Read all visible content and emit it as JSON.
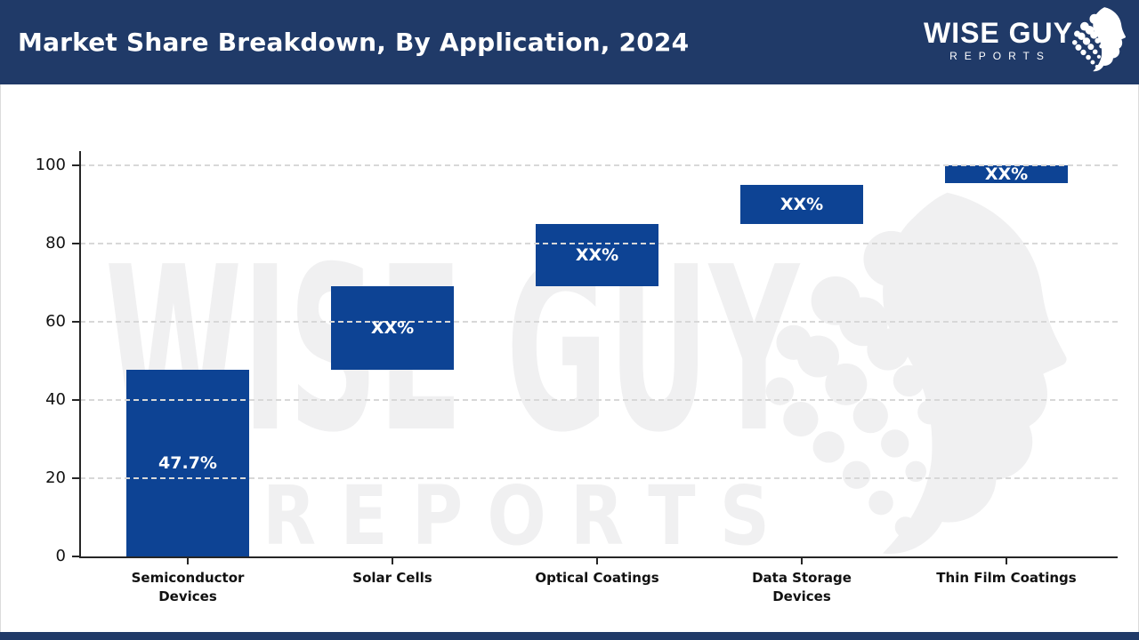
{
  "header": {
    "title": "Market Share Breakdown, By Application, 2024",
    "bg_color": "#203a68",
    "text_color": "#ffffff",
    "logo": {
      "wordmark": "WISE GUY",
      "subtext": "REPORTS",
      "face_icon": "dotted-head-profile"
    }
  },
  "watermark": {
    "line1": "WISE GUY",
    "line2": "R E P O R T S",
    "color": "#f0f0f1"
  },
  "footer": {
    "bg_color": "#203a68"
  },
  "chart_data": {
    "type": "bar",
    "subtype": "waterfall",
    "title": "Market Share Breakdown, By Application, 2024",
    "xlabel": "",
    "ylabel": "",
    "ylim": [
      0,
      100
    ],
    "yticks": [
      0,
      20,
      40,
      60,
      80,
      100
    ],
    "grid": "dashed-horizontal",
    "legend": "none",
    "categories": [
      "Semiconductor\nDevices",
      "Solar Cells",
      "Optical Coatings",
      "Data Storage\nDevices",
      "Thin Film Coatings"
    ],
    "bars": [
      {
        "category": "Semiconductor\nDevices",
        "start": 0,
        "end": 47.7,
        "label": "47.7%"
      },
      {
        "category": "Solar Cells",
        "start": 47.7,
        "end": 69,
        "label": "XX%"
      },
      {
        "category": "Optical Coatings",
        "start": 69,
        "end": 85,
        "label": "XX%"
      },
      {
        "category": "Data Storage\nDevices",
        "start": 85,
        "end": 95,
        "label": "XX%"
      },
      {
        "category": "Thin Film Coatings",
        "start": 95.5,
        "end": 100,
        "label": "XX%"
      }
    ],
    "style": {
      "bar_color": "#0d4394",
      "bar_label_color": "#ffffff",
      "grid_color": "#d8d8d8",
      "axis_color": "#262626",
      "tick_label_color": "#111111"
    }
  }
}
